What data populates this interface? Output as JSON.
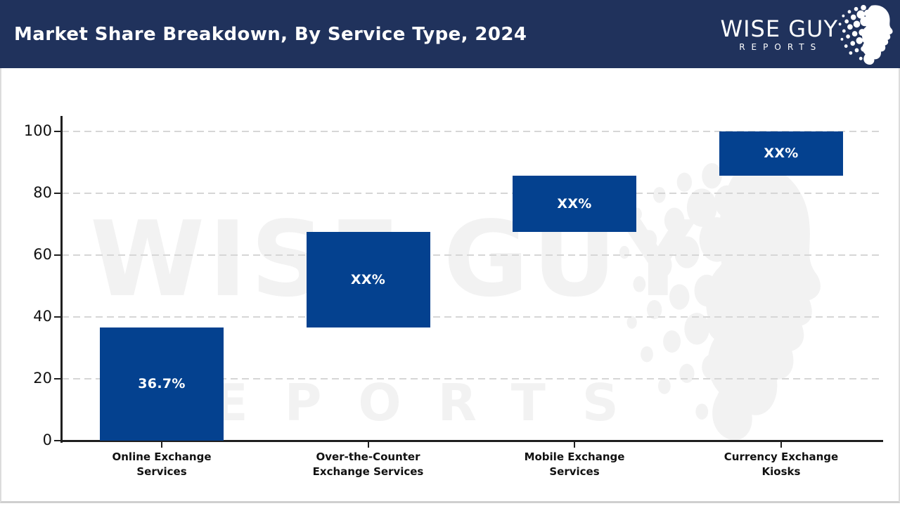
{
  "header": {
    "title": "Market Share Breakdown, By Service Type, 2024",
    "logo": {
      "line1": "WISE GUY",
      "line2": "REPORTS"
    }
  },
  "watermark": {
    "line1": "WISE GUY",
    "line2": "REPORTS"
  },
  "chart_data": {
    "type": "bar",
    "subtype": "waterfall-floating-bars",
    "title": "Market Share Breakdown, By Service Type, 2024",
    "xlabel": "",
    "ylabel": "",
    "categories": [
      "Online Exchange Services",
      "Over-the-Counter Exchange Services",
      "Mobile Exchange Services",
      "Currency Exchange Kiosks"
    ],
    "category_lines": [
      [
        "Online Exchange",
        "Services"
      ],
      [
        "Over-the-Counter",
        "Exchange Services"
      ],
      [
        "Mobile Exchange",
        "Services"
      ],
      [
        "Currency Exchange",
        "Kiosks"
      ]
    ],
    "segments": [
      {
        "category": "Online Exchange Services",
        "label": "36.7%",
        "start": 0,
        "end": 36.7
      },
      {
        "category": "Over-the-Counter Exchange Services",
        "label": "XX%",
        "start": 36.7,
        "end": 67.5
      },
      {
        "category": "Mobile Exchange Services",
        "label": "XX%",
        "start": 67.5,
        "end": 85.7
      },
      {
        "category": "Currency Exchange Kiosks",
        "label": "XX%",
        "start": 85.7,
        "end": 100
      }
    ],
    "yticks": [
      0,
      20,
      40,
      60,
      80,
      100
    ],
    "ylim": [
      0,
      100
    ],
    "grid": "horizontal-dashed",
    "legend": "none"
  },
  "colors": {
    "header_bg": "#20325c",
    "bar": "#04418f",
    "bar_label": "#ffffff",
    "grid": "#d6d6d6",
    "axis": "#1f1f1f",
    "tick_label": "#111111",
    "watermark": "#f2f2f2",
    "page_border": "#d9d9d9"
  }
}
